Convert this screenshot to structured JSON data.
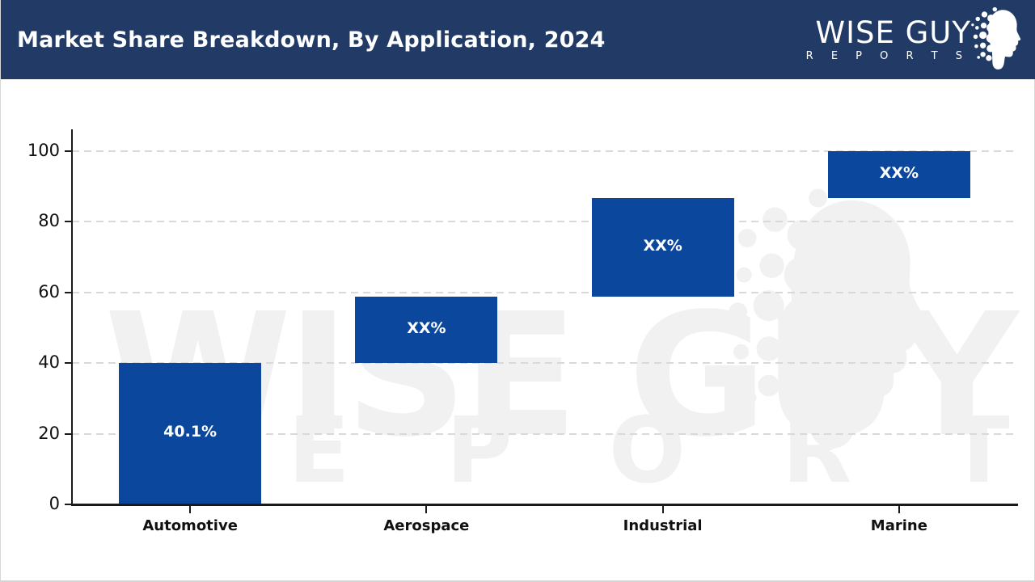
{
  "header": {
    "title": "Market Share Breakdown, By Application, 2024",
    "logo": {
      "line1": "WISE GUY",
      "line2": "R E P O R T S"
    }
  },
  "watermark": {
    "line1": "WISE GUY",
    "line2": "R E P O R T S"
  },
  "chart_data": {
    "type": "bar",
    "subtype": "waterfall",
    "title": "Market Share Breakdown, By Application, 2024",
    "categories": [
      "Automotive",
      "Aerospace",
      "Industrial",
      "Marine"
    ],
    "series": [
      {
        "name": "Market Share",
        "segments": [
          [
            0,
            40.1
          ],
          [
            40.1,
            58.8
          ],
          [
            58.8,
            86.7
          ],
          [
            86.7,
            100
          ]
        ]
      }
    ],
    "bar_labels": [
      "40.1%",
      "XX%",
      "XX%",
      "XX%"
    ],
    "yticks": [
      0,
      20,
      40,
      60,
      80,
      100
    ],
    "ylim": [
      0,
      106
    ],
    "grid": "dashed-horizontal",
    "legend": "none",
    "xlabel": "",
    "ylabel": ""
  },
  "colors": {
    "header_bg": "#213A66",
    "bar": "#0C479E",
    "grid": "#d9d9d9",
    "axis": "#1a1a1a",
    "text": "#111111",
    "bar_label": "#ffffff",
    "watermark": "#f1f1f1"
  }
}
